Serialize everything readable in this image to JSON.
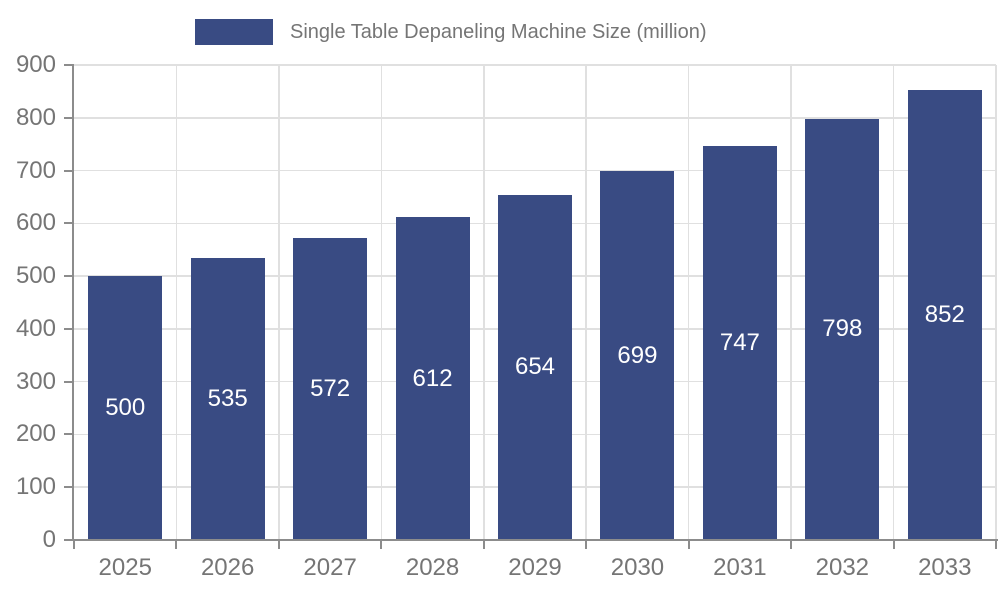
{
  "chart_data": {
    "type": "bar",
    "title": "Single Table Depaneling Machine Size (million)",
    "categories": [
      "2025",
      "2026",
      "2027",
      "2028",
      "2029",
      "2030",
      "2031",
      "2032",
      "2033"
    ],
    "values": [
      500,
      535,
      572,
      612,
      654,
      699,
      747,
      798,
      852
    ],
    "xlabel": "",
    "ylabel": "",
    "ylim": [
      0,
      900
    ],
    "ytick_step": 100,
    "grid": "both",
    "legend_position": "top",
    "bar_color": "#394b83",
    "bar_label_color": "#ffffff",
    "axis_color": "#8c8c8c",
    "grid_color": "#e0e0e0",
    "tick_label_color": "#757575"
  }
}
